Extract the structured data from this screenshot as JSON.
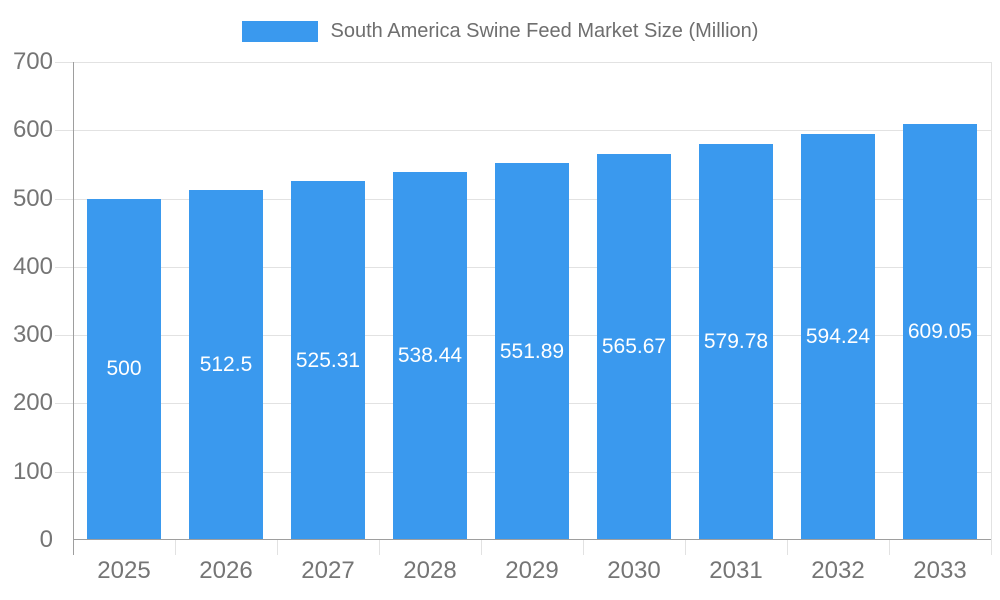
{
  "chart_data": {
    "type": "bar",
    "title": "South America Swine Feed Market Size (Million)",
    "categories": [
      "2025",
      "2026",
      "2027",
      "2028",
      "2029",
      "2030",
      "2031",
      "2032",
      "2033"
    ],
    "values": [
      500,
      512.5,
      525.31,
      538.44,
      551.89,
      565.67,
      579.78,
      594.24,
      609.05
    ],
    "value_labels": [
      "500",
      "512.5",
      "525.31",
      "538.44",
      "551.89",
      "565.67",
      "579.78",
      "594.24",
      "609.05"
    ],
    "xlabel": "",
    "ylabel": "",
    "ylim": [
      0,
      700
    ],
    "y_ticks": [
      0,
      100,
      200,
      300,
      400,
      500,
      600,
      700
    ],
    "grid": true,
    "legend_position": "top",
    "bar_color": "#3a99ee",
    "value_label_color": "#ffffff",
    "axis_label_color": "#757575",
    "title_color": "#6e6e6e",
    "grid_color": "#e2e2e2",
    "axis_line_color": "#9e9e9e"
  }
}
